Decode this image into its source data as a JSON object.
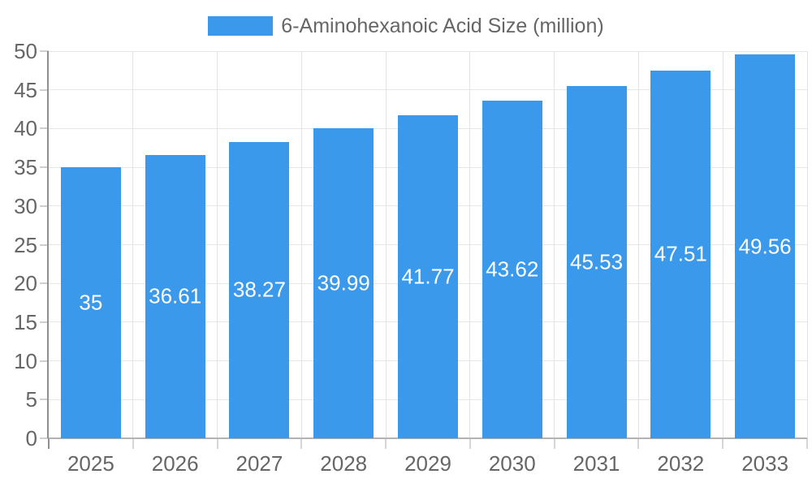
{
  "chart_data": {
    "type": "bar",
    "title": "",
    "legend_position": "top-center",
    "categories": [
      "2025",
      "2026",
      "2027",
      "2028",
      "2029",
      "2030",
      "2031",
      "2032",
      "2033"
    ],
    "series": [
      {
        "name": "6-Aminohexanoic Acid Size (million)",
        "values": [
          35,
          36.61,
          38.27,
          39.99,
          41.77,
          43.62,
          45.53,
          47.51,
          49.56
        ]
      }
    ],
    "value_labels": [
      "35",
      "36.61",
      "38.27",
      "39.99",
      "41.77",
      "43.62",
      "45.53",
      "47.51",
      "49.56"
    ],
    "xlabel": "",
    "ylabel": "",
    "ylim": [
      0,
      50
    ],
    "yticks": [
      0,
      5,
      10,
      15,
      20,
      25,
      30,
      35,
      40,
      45,
      50
    ],
    "grid": true,
    "colors": {
      "bar": "#3b99ec",
      "axis_text": "#666666",
      "value_text": "#ffffff",
      "grid_h": "#e6e6e6",
      "grid_v": "#e3e3e3",
      "y_axis_line": "#8f8f8f",
      "baseline": "#b3b3b3",
      "y_tick": "#cfcfcf",
      "x_tick": "#d6d6d6",
      "background": "#ffffff"
    }
  }
}
